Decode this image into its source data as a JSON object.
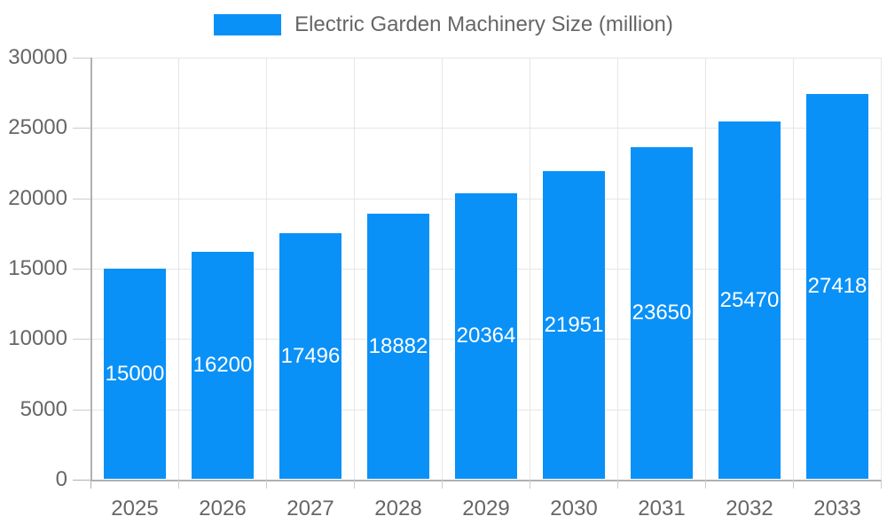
{
  "chart_data": {
    "type": "bar",
    "title": "Electric Garden Machinery Size (million)",
    "legend": {
      "label": "Electric Garden Machinery Size (million)",
      "position": "top"
    },
    "categories": [
      "2025",
      "2026",
      "2027",
      "2028",
      "2029",
      "2030",
      "2031",
      "2032",
      "2033"
    ],
    "series": [
      {
        "name": "Electric Garden Machinery Size (million)",
        "values": [
          15000,
          16200,
          17496,
          18882,
          20364,
          21951,
          23650,
          25470,
          27418
        ]
      }
    ],
    "value_labels": [
      "15000",
      "16200",
      "17496",
      "18882",
      "20364",
      "21951",
      "23650",
      "25470",
      "27418"
    ],
    "xlabel": "",
    "ylabel": "",
    "ylim": [
      0,
      30000
    ],
    "yticks": [
      0,
      5000,
      10000,
      15000,
      20000,
      25000,
      30000
    ],
    "ytick_labels": [
      "0",
      "5000",
      "10000",
      "15000",
      "20000",
      "25000",
      "30000"
    ],
    "grid": true,
    "colors": {
      "bar": "#0a91f7",
      "grid": "#e6e6e6",
      "axis": "#b0b0b0",
      "text": "#666666",
      "value_label": "#ffffff",
      "background": "#ffffff"
    }
  }
}
